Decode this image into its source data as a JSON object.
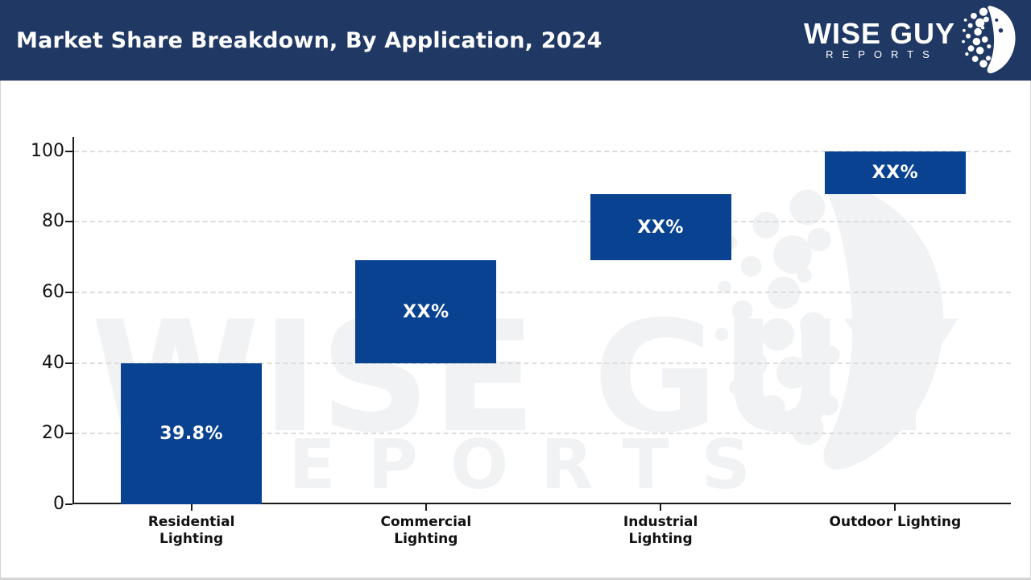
{
  "header": {
    "title": "Market Share Breakdown, By Application, 2024",
    "bg_color": "#1F3864",
    "logo": {
      "line1": "WISE GUY",
      "line2": "REPORTS"
    }
  },
  "watermark": {
    "line1": "WISE GUY",
    "line2": "REPORTS"
  },
  "chart_data": {
    "type": "bar",
    "subtype": "waterfall",
    "title": "Market Share Breakdown, By Application, 2024",
    "xlabel": "",
    "ylabel": "",
    "categories": [
      "Residential\nLighting",
      "Commercial\nLighting",
      "Industrial\nLighting",
      "Outdoor Lighting"
    ],
    "segments": [
      {
        "category": "Residential Lighting",
        "start": 0,
        "end": 39.8,
        "label": "39.8%",
        "value_shown": "39.8%"
      },
      {
        "category": "Commercial Lighting",
        "start": 39.8,
        "end": 69.1,
        "label": "XX%",
        "value_shown": "XX% (masked, ~29.3 est. from gridlines)"
      },
      {
        "category": "Industrial Lighting",
        "start": 69.1,
        "end": 87.8,
        "label": "XX%",
        "value_shown": "XX% (masked, ~18.7 est. from gridlines)"
      },
      {
        "category": "Outdoor Lighting",
        "start": 87.8,
        "end": 100,
        "label": "XX%",
        "value_shown": "XX% (masked, ~12.2 est. from gridlines)"
      }
    ],
    "y_ticks": [
      0,
      20,
      40,
      60,
      80,
      100
    ],
    "ylim": [
      0,
      104
    ],
    "bar_color": "#084291",
    "bar_label_color": "#ffffff",
    "grid": "horizontal dashed",
    "legend": "none"
  }
}
